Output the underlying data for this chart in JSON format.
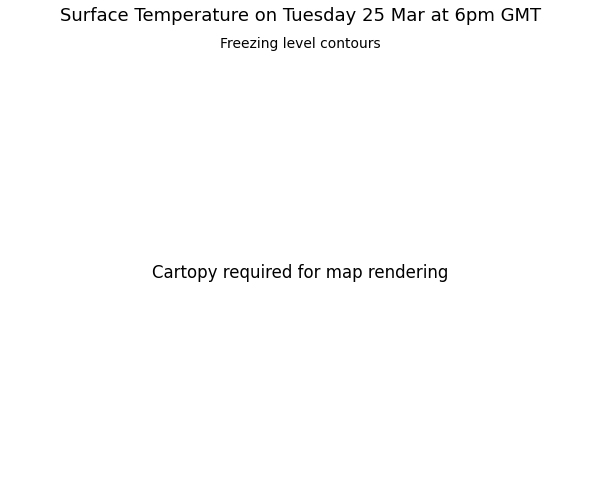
{
  "title": "Surface Temperature on Tuesday 25 Mar at 6pm GMT",
  "subtitle": "Freezing level contours",
  "title_fontsize": 13,
  "subtitle_fontsize": 10,
  "map_background": "#c8cfe8",
  "header_background": "#f0f0f0",
  "figsize": [
    6.01,
    4.88
  ],
  "dpi": 100,
  "lon_min": -25,
  "lon_max": 30,
  "lat_min": 35,
  "lat_max": 72
}
